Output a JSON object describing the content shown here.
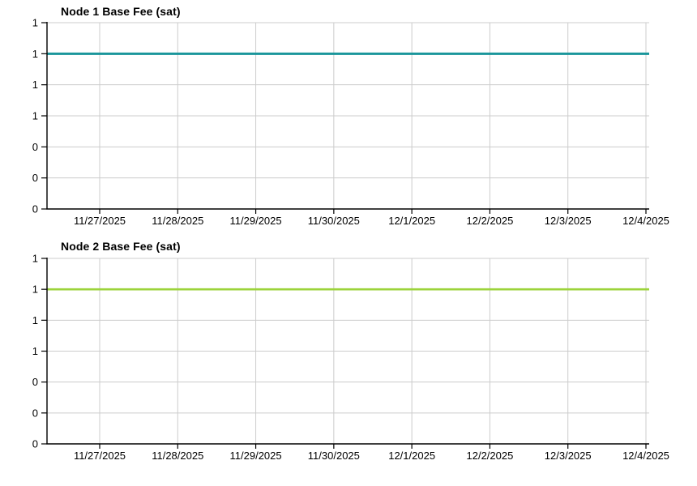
{
  "page": {
    "background_color": "#ffffff"
  },
  "chart_data": [
    {
      "type": "line",
      "title": "Node 1 Base Fee (sat)",
      "x": [
        "11/27/2025",
        "11/28/2025",
        "11/29/2025",
        "11/30/2025",
        "12/1/2025",
        "12/2/2025",
        "12/3/2025",
        "12/4/2025"
      ],
      "series": [
        {
          "name": "Node 1 Base Fee (sat)",
          "values": [
            1,
            1,
            1,
            1,
            1,
            1,
            1,
            1
          ]
        }
      ],
      "ylim": [
        0,
        1.2
      ],
      "y_ticks": [
        1.2,
        1.0,
        0.8,
        0.6,
        0.4,
        0.2,
        0
      ],
      "y_tick_labels": [
        "1",
        "1",
        "1",
        "1",
        "0",
        "0",
        "0"
      ],
      "line_color": "#1a969b",
      "grid": true,
      "grid_color": "#cccccc",
      "axis_color": "#000000",
      "legend_position": "none"
    },
    {
      "type": "line",
      "title": "Node 2 Base Fee (sat)",
      "x": [
        "11/27/2025",
        "11/28/2025",
        "11/29/2025",
        "11/30/2025",
        "12/1/2025",
        "12/2/2025",
        "12/3/2025",
        "12/4/2025"
      ],
      "series": [
        {
          "name": "Node 2 Base Fee (sat)",
          "values": [
            1,
            1,
            1,
            1,
            1,
            1,
            1,
            1
          ]
        }
      ],
      "ylim": [
        0,
        1.2
      ],
      "y_ticks": [
        1.2,
        1.0,
        0.8,
        0.6,
        0.4,
        0.2,
        0
      ],
      "y_tick_labels": [
        "1",
        "1",
        "1",
        "1",
        "0",
        "0",
        "0"
      ],
      "line_color": "#9cd33b",
      "grid": true,
      "grid_color": "#cccccc",
      "axis_color": "#000000",
      "legend_position": "none"
    }
  ]
}
